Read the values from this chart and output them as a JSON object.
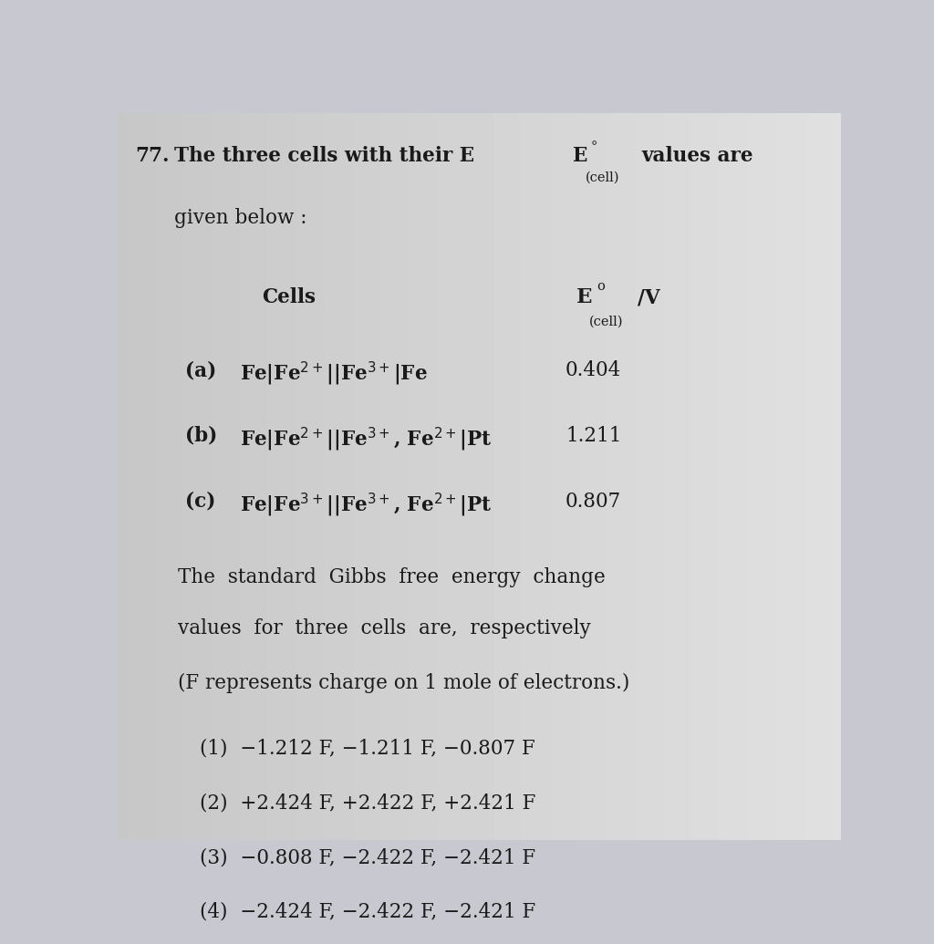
{
  "bg_color": "#c8c8d0",
  "bg_center_color": "#d8d8e0",
  "text_color": "#1a1a1a",
  "question_number": "77.",
  "title_part1": "The three cells with their E",
  "title_E_super": "°",
  "title_E_sub": "(cell)",
  "title_part2": "values are",
  "title_line2": "given below :",
  "col1_header": "Cells",
  "col2_header_E": "E",
  "col2_header_sup": "o",
  "col2_header_sub": "(cell)",
  "col2_header_unit": "/V",
  "row_a_val": "0.404",
  "row_b_val": "1.211",
  "row_c_val": "0.807",
  "para1_line1": "The standard Gibbs free energy change",
  "para1_line2": "values for three cells are, respectively",
  "para2": "(F represents charge on 1 mole of electrons.)",
  "opt1": "(1)  −1.212 F, −1.211 F, −0.807 F",
  "opt2": "(2)  +2.424 F, +2.422 F, +2.421 F",
  "opt3": "(3)  −0.808 F, −2.422 F, −2.421 F",
  "opt4": "(4)  −2.424 F, −2.422 F, −2.421 F",
  "fig_width": 10.24,
  "fig_height": 10.35,
  "dpi": 100
}
